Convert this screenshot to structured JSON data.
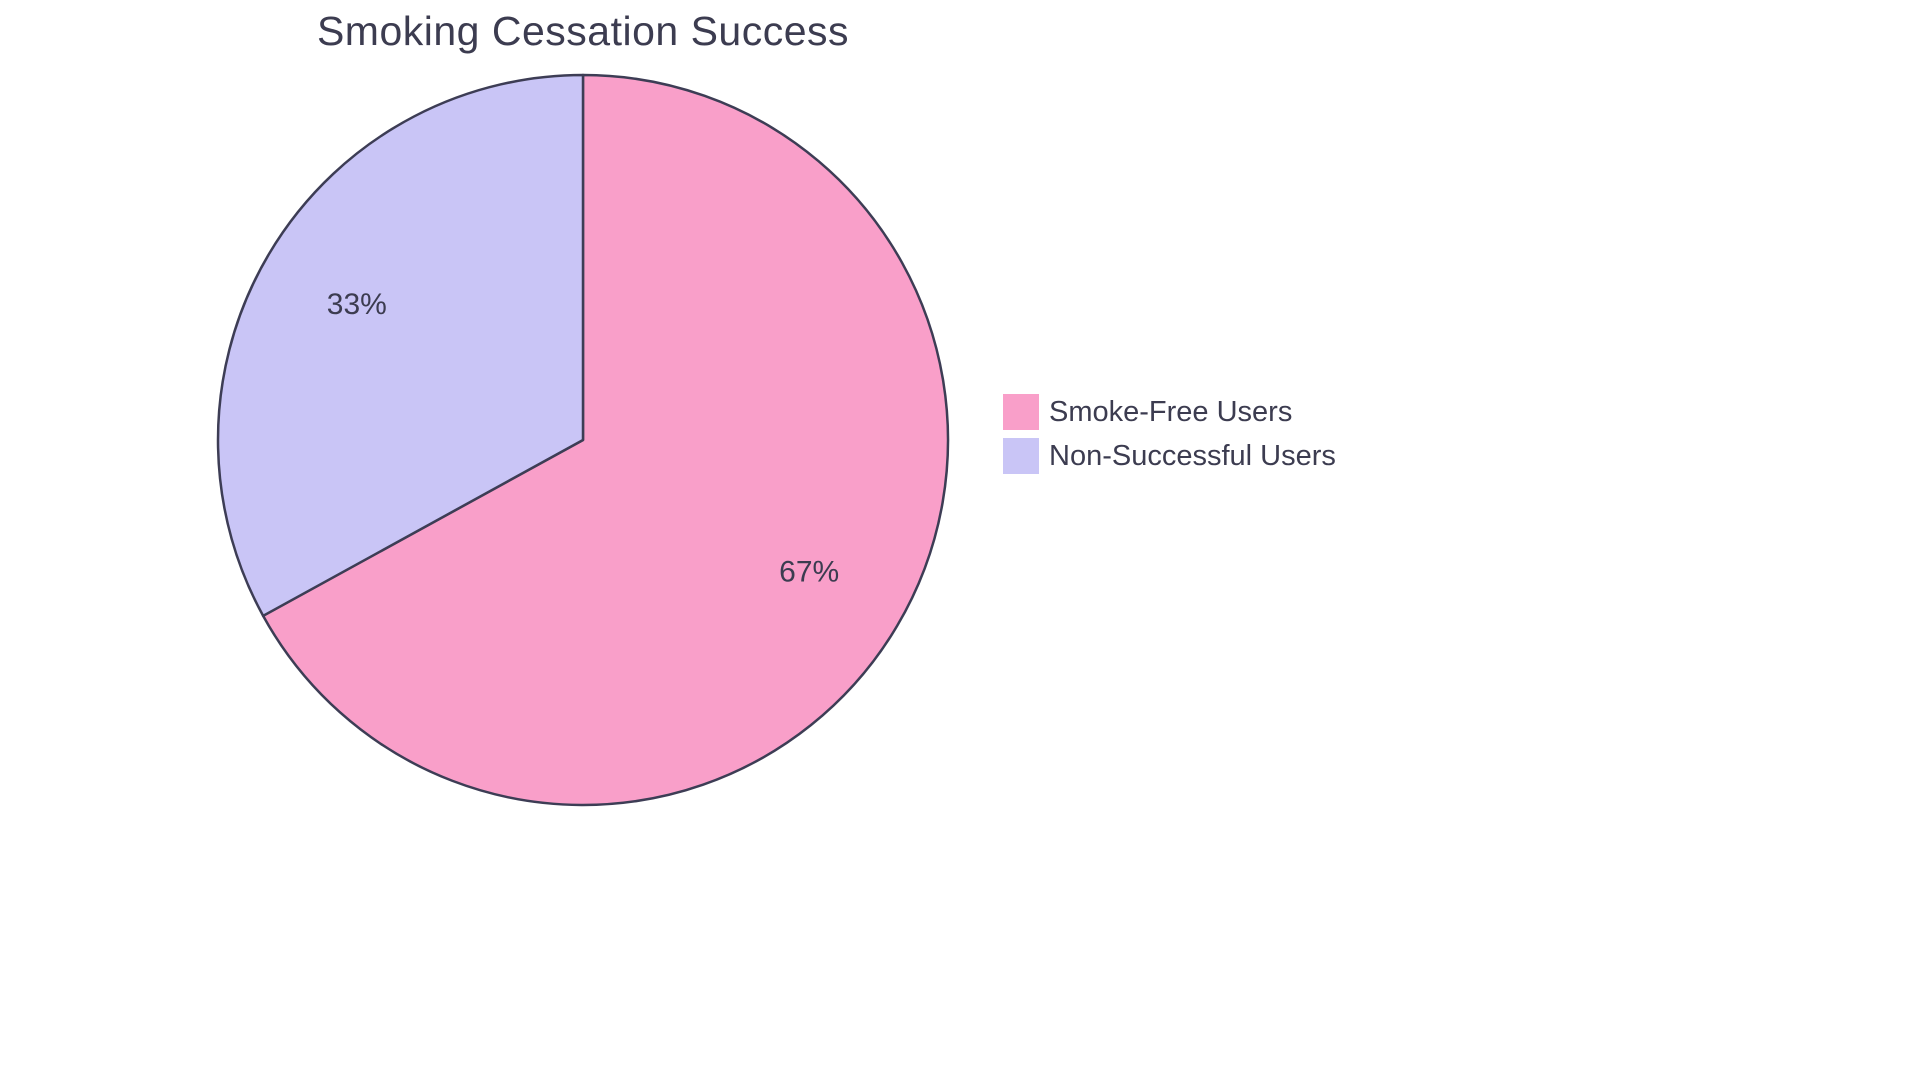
{
  "chart_data": {
    "type": "pie",
    "title": "Smoking Cessation Success",
    "slices": [
      {
        "label": "Smoke-Free Users",
        "value": 67,
        "percent_label": "67%",
        "color": "#F99FC9"
      },
      {
        "label": "Non-Successful Users",
        "value": 33,
        "percent_label": "33%",
        "color": "#C9C5F6"
      }
    ],
    "start_angle_deg": 0,
    "direction": "clockwise",
    "legend_position": "right",
    "stroke_color": "#3D3D55",
    "label_color": "#3C3C50",
    "background_color": "#FFFFFF"
  }
}
